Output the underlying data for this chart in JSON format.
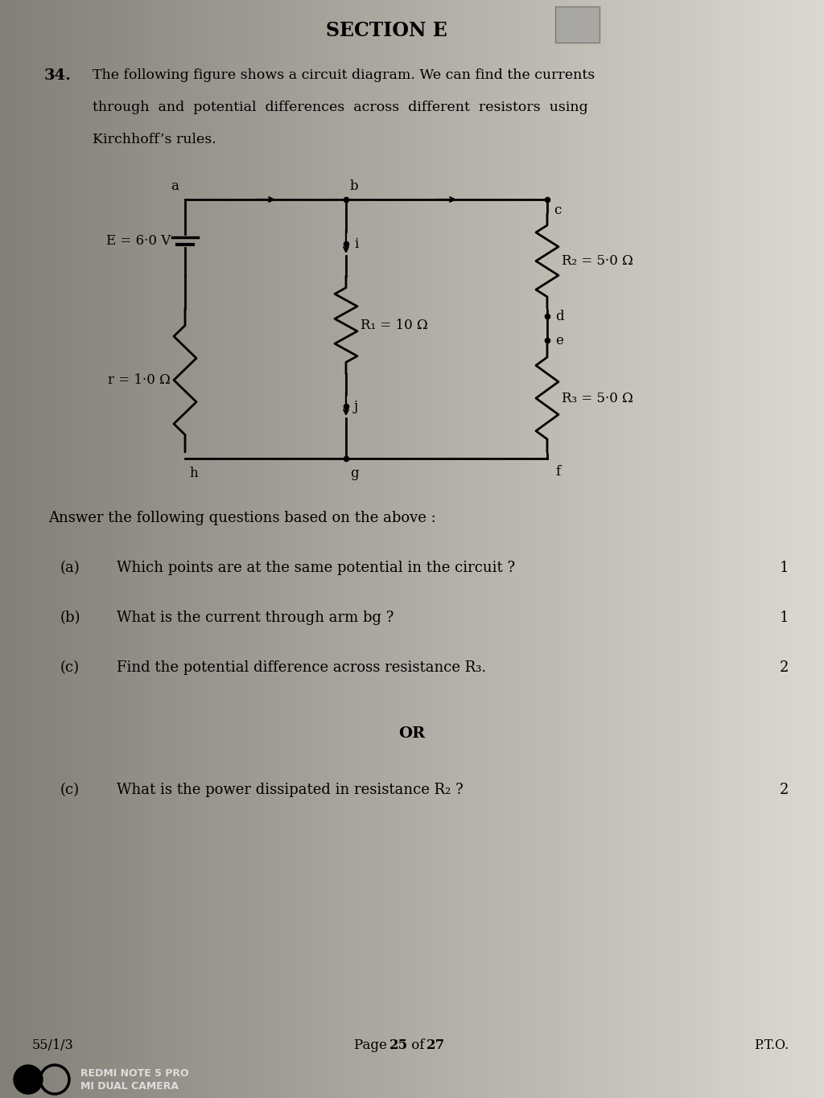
{
  "bg_color": "#c8c4b8",
  "title": "SECTION E",
  "question_number": "34.",
  "q_line1": "The following figure shows a circuit diagram. We can find the currents",
  "q_line2": "through  and  potential  differences  across  different  resistors  using",
  "q_line3": "Kirchhoff’s rules.",
  "E_label": "E = 6·0 V",
  "r_label": "r = 1·0 Ω",
  "R1_label": "R₁ = 10 Ω",
  "R2_label": "R₂ = 5·0 Ω",
  "R3_label": "R₃ = 5·0 Ω",
  "answer_intro": "Answer the following questions based on the above :",
  "parts": [
    {
      "label": "(a)",
      "text": "Which points are at the same potential in the circuit ?",
      "marks": "1"
    },
    {
      "label": "(b)",
      "text": "What is the current through arm bg ?",
      "marks": "1"
    },
    {
      "label": "(c)",
      "text": "Find the potential difference across resistance R₃.",
      "marks": "2"
    }
  ],
  "or_text": "OR",
  "part_c_alt_label": "(c)",
  "part_c_alt_text": "What is the power dissipated in resistance R₂ ?",
  "part_c_alt_marks": "2",
  "footer_left": "55/1/3",
  "footer_center": "Page ",
  "footer_center_bold": "25",
  "footer_center2": " of ",
  "footer_center_bold2": "27",
  "footer_right": "P.T.O."
}
